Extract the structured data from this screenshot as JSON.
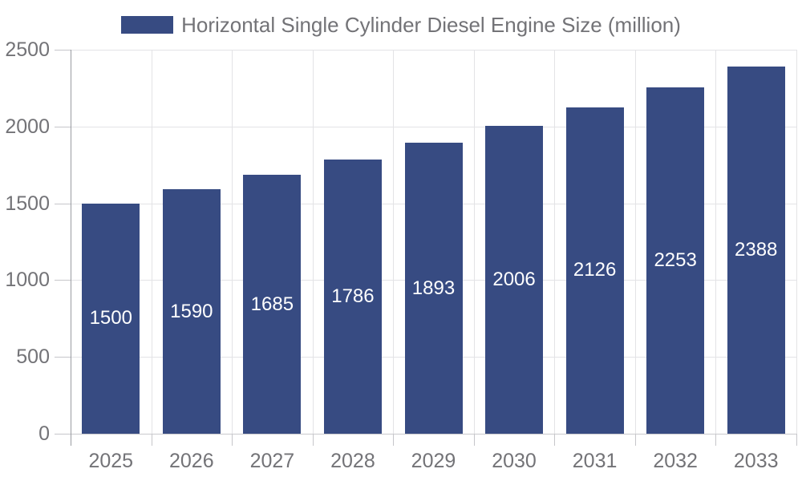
{
  "legend": {
    "label": "Horizontal Single Cylinder Diesel Engine Size (million)"
  },
  "chart_data": {
    "type": "bar",
    "title": "",
    "series_name": "Horizontal Single Cylinder Diesel Engine Size (million)",
    "categories": [
      "2025",
      "2026",
      "2027",
      "2028",
      "2029",
      "2030",
      "2031",
      "2032",
      "2033"
    ],
    "values": [
      1500,
      1590,
      1685,
      1786,
      1893,
      2006,
      2126,
      2253,
      2388
    ],
    "bar_labels": [
      "1500",
      "1590",
      "1685",
      "1786",
      "1893",
      "2006",
      "2126",
      "2253",
      "2388"
    ],
    "xlabel": "",
    "ylabel": "",
    "ylim": [
      0,
      2500
    ],
    "yticks": [
      0,
      500,
      1000,
      1500,
      2000,
      2500
    ],
    "grid": "on",
    "legend_position": "top-center",
    "value_labels_position": "middle-of-bar",
    "colors": {
      "bar": "#374B82",
      "bar_value_text": "#ffffff",
      "axis_text": "#737377",
      "legend_text": "#737377",
      "gridline": "#e3e3e6",
      "axis_line": "#999ca1",
      "tick": "#c6c6ca",
      "background": "#ffffff"
    }
  }
}
